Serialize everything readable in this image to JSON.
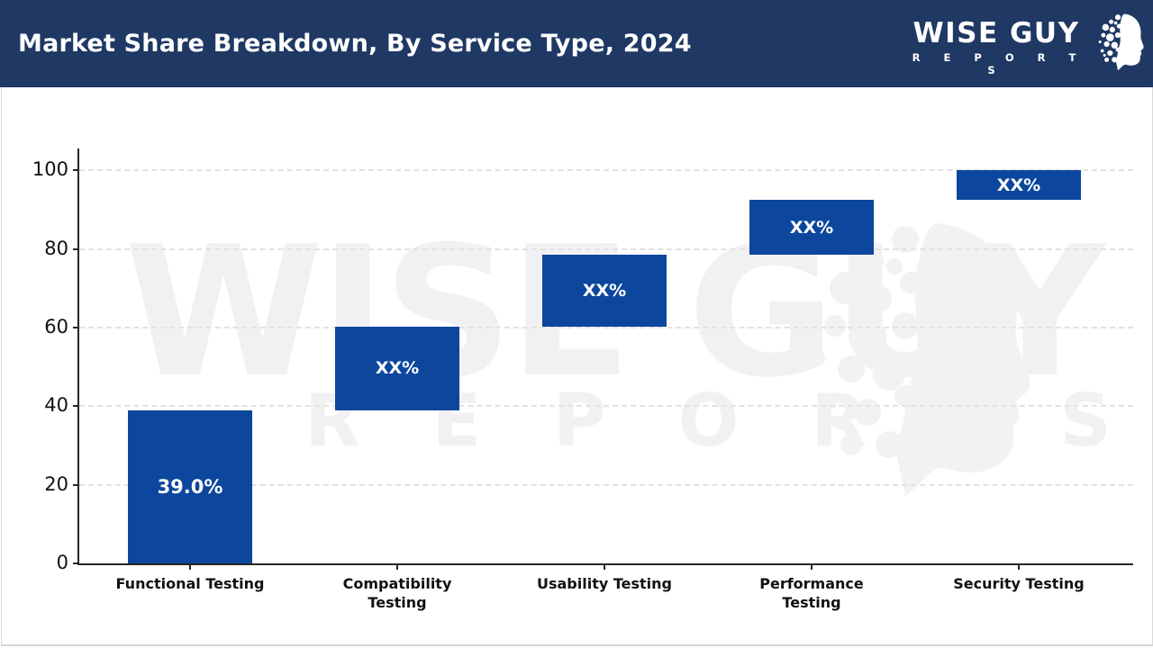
{
  "header": {
    "title": "Market Share Breakdown, By Service Type, 2024",
    "bg_color": "#1f3864",
    "logo": {
      "line1": "WISE GUY",
      "line2": "R E P O R T S"
    }
  },
  "watermark": {
    "line1": "WISE GUY",
    "line2": "R E P O R T S"
  },
  "chart_data": {
    "type": "bar",
    "subtype": "waterfall",
    "title": "Market Share Breakdown, By Service Type, 2024",
    "xlabel": "",
    "ylabel": "",
    "ylim": [
      0,
      100
    ],
    "yticks": [
      0,
      20,
      40,
      60,
      80,
      100
    ],
    "grid": "horizontal-dashed",
    "legend": "none",
    "bar_color": "#0c479d",
    "categories": [
      "Functional Testing",
      "Compatibility\nTesting",
      "Usability Testing",
      "Performance\nTesting",
      "Security Testing"
    ],
    "segments": [
      {
        "category": "Functional Testing",
        "start": 0,
        "end": 39,
        "label": "39.0%"
      },
      {
        "category": "Compatibility Testing",
        "start": 39,
        "end": 60.3,
        "label": "XX%"
      },
      {
        "category": "Usability Testing",
        "start": 60.3,
        "end": 78.5,
        "label": "XX%"
      },
      {
        "category": "Performance Testing",
        "start": 78.5,
        "end": 92.5,
        "label": "XX%"
      },
      {
        "category": "Security Testing",
        "start": 92.5,
        "end": 100,
        "label": "XX%"
      }
    ]
  }
}
